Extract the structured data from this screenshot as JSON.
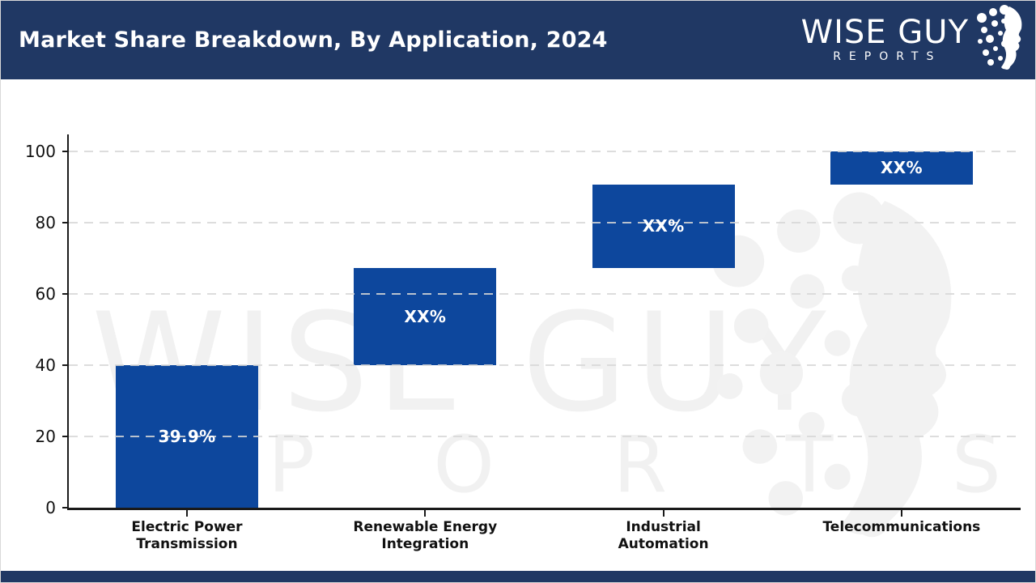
{
  "header": {
    "title": "Market Share Breakdown, By Application, 2024",
    "bg_color": "#203864",
    "logo": {
      "name": "WISE GUY",
      "subtitle": "REPORTS"
    }
  },
  "watermark": {
    "line1": "WISE GUY",
    "line2": "P O R T S"
  },
  "footer": {
    "bg_color": "#203864"
  },
  "chart_data": {
    "type": "bar",
    "variant": "waterfall-stacked-breakdown",
    "title": "Market Share Breakdown, By Application, 2024",
    "categories": [
      "Electric Power Transmission",
      "Renewable Energy Integration",
      "Industrial Automation",
      "Telecommunications"
    ],
    "category_lines": [
      [
        "Electric Power",
        "Transmission"
      ],
      [
        "Renewable Energy",
        "Integration"
      ],
      [
        "Industrial",
        "Automation"
      ],
      [
        "Telecommunications"
      ]
    ],
    "segments": [
      {
        "category": "Electric Power Transmission",
        "start": 0,
        "end": 39.9,
        "label": "39.9%"
      },
      {
        "category": "Renewable Energy Integration",
        "start": 39.9,
        "end": 67.3,
        "label": "XX%"
      },
      {
        "category": "Industrial Automation",
        "start": 67.3,
        "end": 90.7,
        "label": "XX%"
      },
      {
        "category": "Telecommunications",
        "start": 90.7,
        "end": 100,
        "label": "XX%"
      }
    ],
    "xlabel": "",
    "ylabel": "",
    "ylim": [
      0,
      100
    ],
    "yticks": [
      0,
      20,
      40,
      60,
      80,
      100
    ],
    "grid": {
      "show": true,
      "style": "dashed",
      "axis": "y"
    },
    "legend": "none",
    "bar_color": "#0d479d",
    "bar_label_color": "#ffffff",
    "axis_color": "#1a1a1a"
  }
}
